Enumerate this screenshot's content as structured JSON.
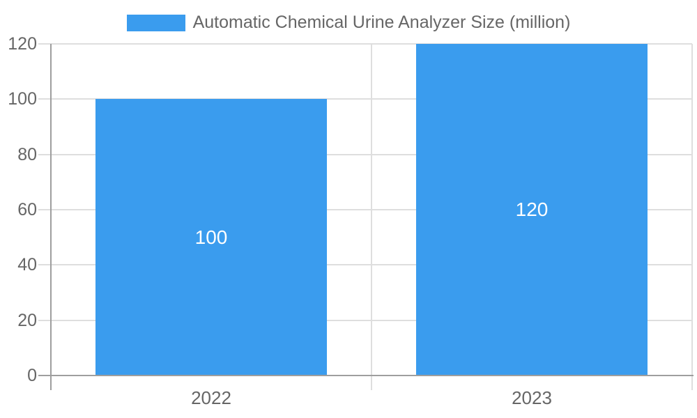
{
  "chart_data": {
    "type": "bar",
    "title": "Automatic Chemical Urine Analyzer Size (million)",
    "legend": {
      "position": "top-center",
      "label": "Automatic Chemical Urine Analyzer Size (million)"
    },
    "categories": [
      "2022",
      "2023"
    ],
    "values": [
      100,
      120
    ],
    "value_labels": [
      "100",
      "120"
    ],
    "xlabel": "",
    "ylabel": "",
    "ylim": [
      0,
      120
    ],
    "yticks": [
      0,
      20,
      40,
      60,
      80,
      100,
      120
    ],
    "grid": true,
    "colors": {
      "bar": "#3A9CEE",
      "bar_value_label": "#FFFFFF",
      "axis_text": "#666666",
      "legend_text": "#666666",
      "gridline": "#DEDEDE",
      "axis_line": "#9E9E9E",
      "background": "#FFFFFF"
    }
  }
}
